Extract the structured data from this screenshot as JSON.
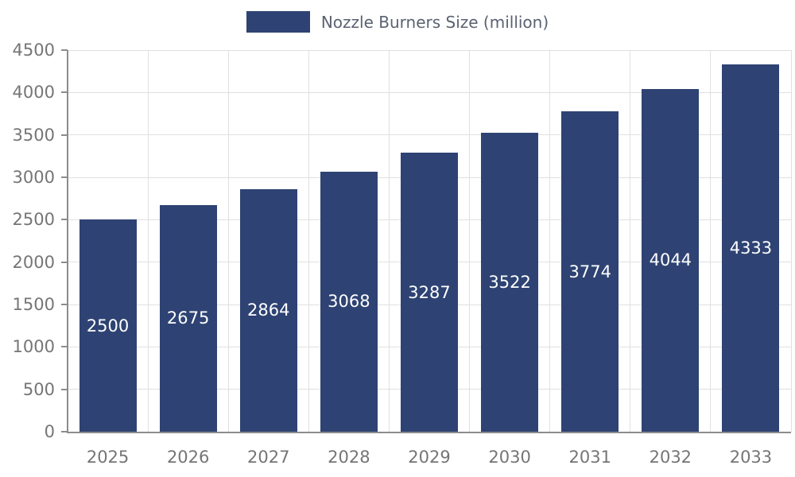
{
  "legend": {
    "label": "Nozzle Burners Size (million)"
  },
  "colors": {
    "bar": "#2e4373",
    "grid": "#e0e0e0",
    "axis": "#8c8c8c",
    "tick_text": "#757575",
    "value_label": "#ffffff",
    "legend_text": "#5a6272"
  },
  "chart_data": {
    "type": "bar",
    "title": "Nozzle Burners Size (million)",
    "categories": [
      "2025",
      "2026",
      "2027",
      "2028",
      "2029",
      "2030",
      "2031",
      "2032",
      "2033"
    ],
    "values": [
      2500,
      2675,
      2864,
      3068,
      3287,
      3522,
      3774,
      4044,
      4333
    ],
    "xlabel": "",
    "ylabel": "",
    "ylim": [
      0,
      4500
    ],
    "ytick_step": 500,
    "yticks": [
      0,
      500,
      1000,
      1500,
      2000,
      2500,
      3000,
      3500,
      4000,
      4500
    ],
    "grid": true,
    "legend_position": "top",
    "value_labels": "inside-center"
  }
}
